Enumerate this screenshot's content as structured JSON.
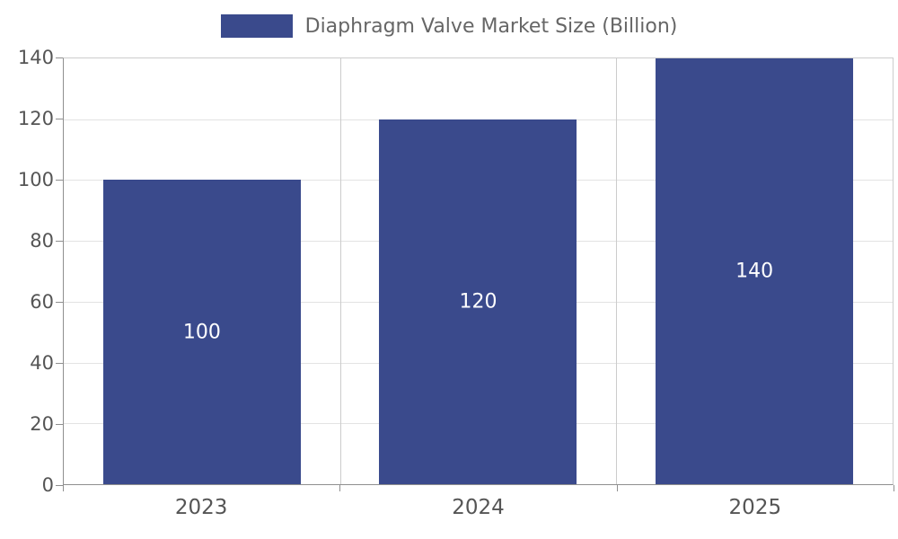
{
  "chart_data": {
    "type": "bar",
    "title": "Diaphragm Valve Market Size (Billion)",
    "categories": [
      "2023",
      "2024",
      "2025"
    ],
    "values": [
      100,
      120,
      140
    ],
    "value_labels": [
      "100",
      "120",
      "140"
    ],
    "xlabel": "",
    "ylabel": "",
    "ylim": [
      0,
      140
    ],
    "yticks": [
      0,
      20,
      40,
      60,
      80,
      100,
      120,
      140
    ],
    "grid": true,
    "legend_position": "top",
    "colors": {
      "bar": "#3a4a8c",
      "bar_value_text": "#ffffff",
      "axis_text": "#555555",
      "title_text": "#666666",
      "gridline": "#e3e3e3",
      "separator": "#cccccc"
    }
  }
}
